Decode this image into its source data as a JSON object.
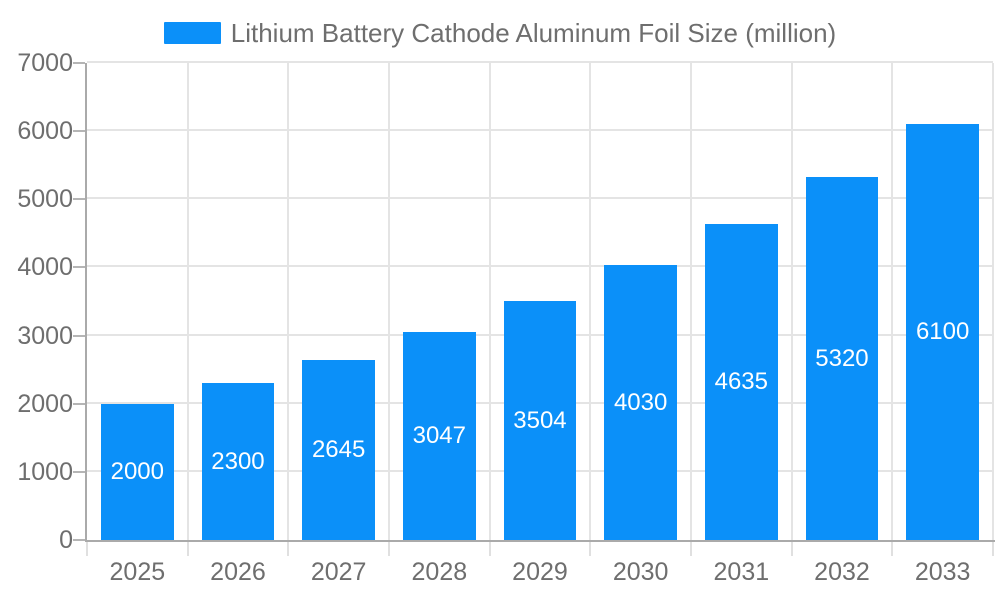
{
  "chart_data": {
    "type": "bar",
    "title": "Lithium Battery Cathode Aluminum Foil Size (million)",
    "categories": [
      "2025",
      "2026",
      "2027",
      "2028",
      "2029",
      "2030",
      "2031",
      "2032",
      "2033"
    ],
    "values": [
      2000,
      2300,
      2645,
      3047,
      3504,
      4030,
      4635,
      5320,
      6100
    ],
    "xlabel": "",
    "ylabel": "",
    "ylim": [
      0,
      7000
    ],
    "yticks": [
      0,
      1000,
      2000,
      3000,
      4000,
      5000,
      6000,
      7000
    ],
    "grid": "on",
    "legend_position": "top-center",
    "data_label_position": "inside-middle",
    "colors": {
      "bar": "#0b90f9",
      "bar_label_text": "#ffffff",
      "axis_text": "#6e6e6e",
      "title_text": "#6e6e6e",
      "gridline": "#e4e4e4",
      "axis_line": "#aaaaaa",
      "y_tick": "#b5b5b5",
      "x_tick": "#e0e0e0",
      "background": "#ffffff"
    }
  },
  "legend": {
    "series_label": "Lithium Battery Cathode Aluminum Foil Size (million)"
  }
}
